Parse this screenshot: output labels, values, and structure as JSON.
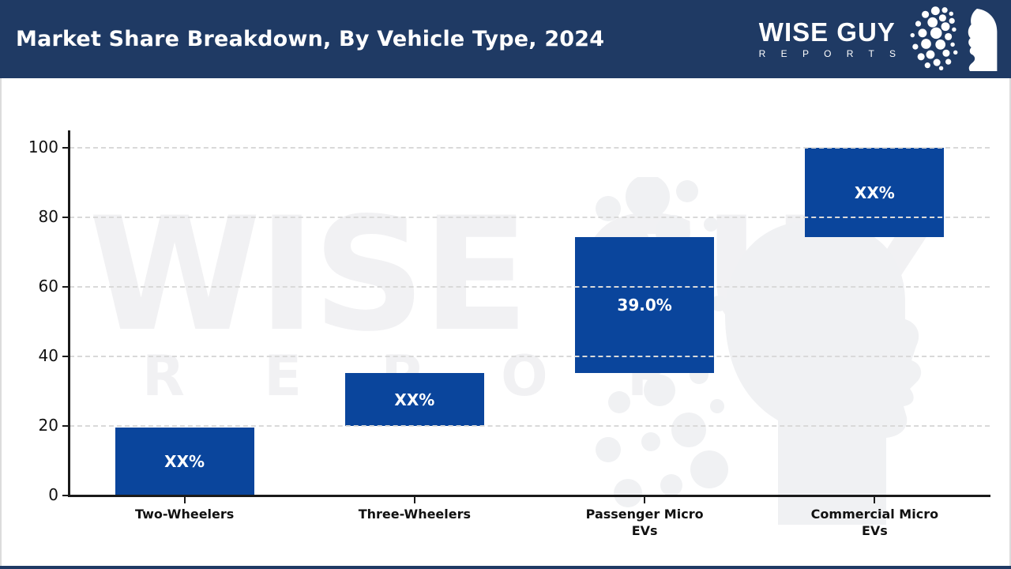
{
  "header": {
    "title": "Market Share Breakdown, By Vehicle Type, 2024",
    "logo": {
      "wordmark": "WISE GUY",
      "subtext": "R E P O R T S",
      "icon": "dotted-face-profile-icon"
    }
  },
  "watermark": {
    "wordmark": "WISE GUY",
    "subtext": "R E P O R T S",
    "icon": "dotted-head-profile-watermark"
  },
  "colors": {
    "header_bg": "#1f3a64",
    "bar": "#0a459c",
    "bar_label": "#ffffff",
    "gridline": "#d9d9d9",
    "axis": "#1a1a1a",
    "watermark": "#f1f1f3"
  },
  "chart_data": {
    "type": "bar",
    "subtype": "waterfall-floating-bars",
    "title": "Market Share Breakdown, By Vehicle Type, 2024",
    "xlabel": "",
    "ylabel": "",
    "ylim": [
      0,
      100
    ],
    "yticks": [
      0,
      20,
      40,
      60,
      80,
      100
    ],
    "grid": "horizontal-dashed-over-bars",
    "legend": "none",
    "categories": [
      "Two-Wheelers",
      "Three-Wheelers",
      "Passenger Micro\nEVs",
      "Commercial Micro\nEVs"
    ],
    "segments": [
      {
        "category": "Two-Wheelers",
        "start": 0,
        "end": 19.6,
        "height": 19.6,
        "label": "XX%"
      },
      {
        "category": "Three-Wheelers",
        "start": 19.9,
        "end": 35.3,
        "height": 15.4,
        "label": "XX%"
      },
      {
        "category": "Passenger Micro\nEVs",
        "start": 35.3,
        "end": 74.3,
        "height": 39.0,
        "label": "39.0%"
      },
      {
        "category": "Commercial Micro\nEVs",
        "start": 74.3,
        "end": 100,
        "height": 25.7,
        "label": "XX%"
      }
    ]
  }
}
